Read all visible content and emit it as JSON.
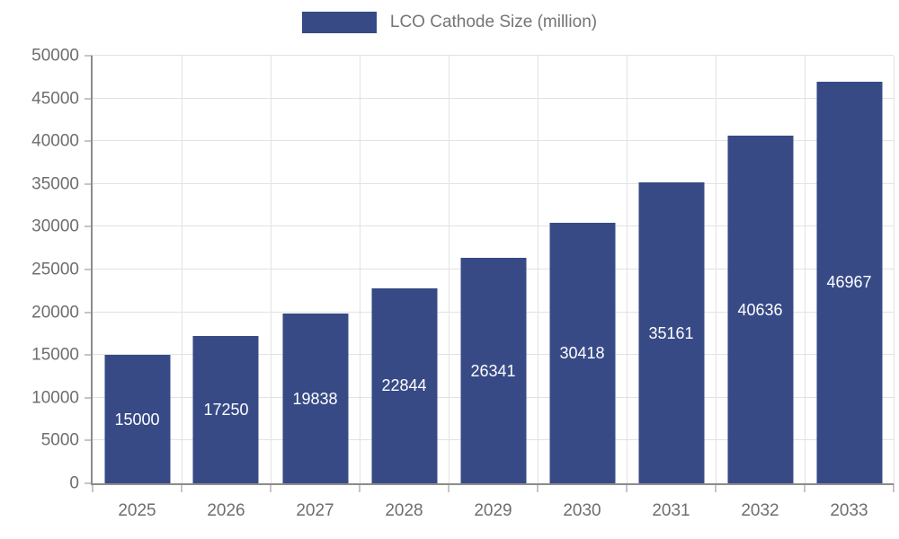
{
  "legend": {
    "label": "LCO Cathode Size (million)",
    "swatch_color": "#374A86"
  },
  "chart_data": {
    "type": "bar",
    "title": "",
    "xlabel": "",
    "ylabel": "",
    "categories": [
      "2025",
      "2026",
      "2027",
      "2028",
      "2029",
      "2030",
      "2031",
      "2032",
      "2033"
    ],
    "series": [
      {
        "name": "LCO Cathode Size (million)",
        "values": [
          15000,
          17250,
          19838,
          22844,
          26341,
          30418,
          35161,
          40636,
          46967
        ]
      }
    ],
    "ylim": [
      0,
      50000
    ],
    "yticks": [
      0,
      5000,
      10000,
      15000,
      20000,
      25000,
      30000,
      35000,
      40000,
      45000,
      50000
    ],
    "grid": true,
    "legend_position": "top",
    "bar_color": "#374A86",
    "value_label_color": "#FFFFFF"
  },
  "colors": {
    "bar": "#374A86",
    "gridline": "#E2E2E2",
    "axis_line": "#8C8C8C",
    "tick_label": "#6E6E6E",
    "legend_text": "#757575",
    "background": "#FFFFFF"
  }
}
